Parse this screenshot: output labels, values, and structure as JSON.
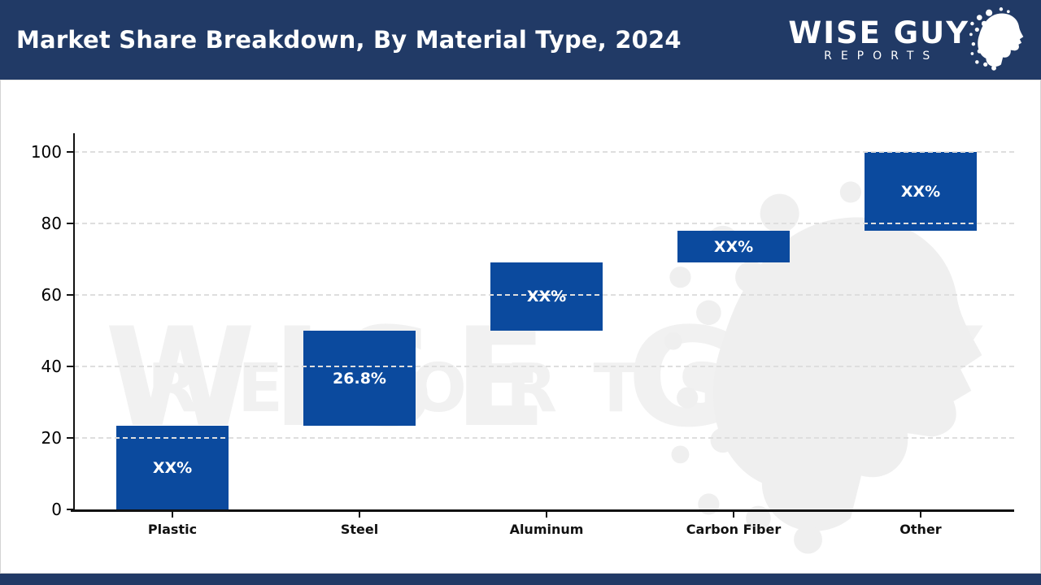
{
  "header": {
    "title": "Market Share Breakdown, By Material Type, 2024",
    "logo": {
      "line1": "WISE GUY",
      "line2": "REPORTS"
    }
  },
  "watermark": {
    "line1": "WISE GUY",
    "line2": "REPORTS"
  },
  "colors": {
    "navy": "#213a66",
    "bar_blue": "#0b4a9e"
  },
  "chart_data": {
    "type": "bar",
    "subtype": "waterfall",
    "title": "Market Share Breakdown, By Material Type, 2024",
    "categories": [
      "Plastic",
      "Steel",
      "Aluminum",
      "Carbon Fiber",
      "Other"
    ],
    "values": [
      23.3,
      26.8,
      18.9,
      8.9,
      22.1
    ],
    "cumulative_start": [
      0,
      23.3,
      50.1,
      69.0,
      77.9
    ],
    "cumulative_end": [
      23.3,
      50.1,
      69.0,
      77.9,
      100
    ],
    "bar_labels": [
      "XX%",
      "26.8%",
      "XX%",
      "XX%",
      "XX%"
    ],
    "xlabel": "",
    "ylabel": "",
    "y_ticks": [
      0,
      20,
      40,
      60,
      80,
      100
    ],
    "ylim": [
      0,
      105
    ],
    "bar_color": "#0b4a9e",
    "grid": "horizontal-dashed-over-bars",
    "legend": "none"
  }
}
